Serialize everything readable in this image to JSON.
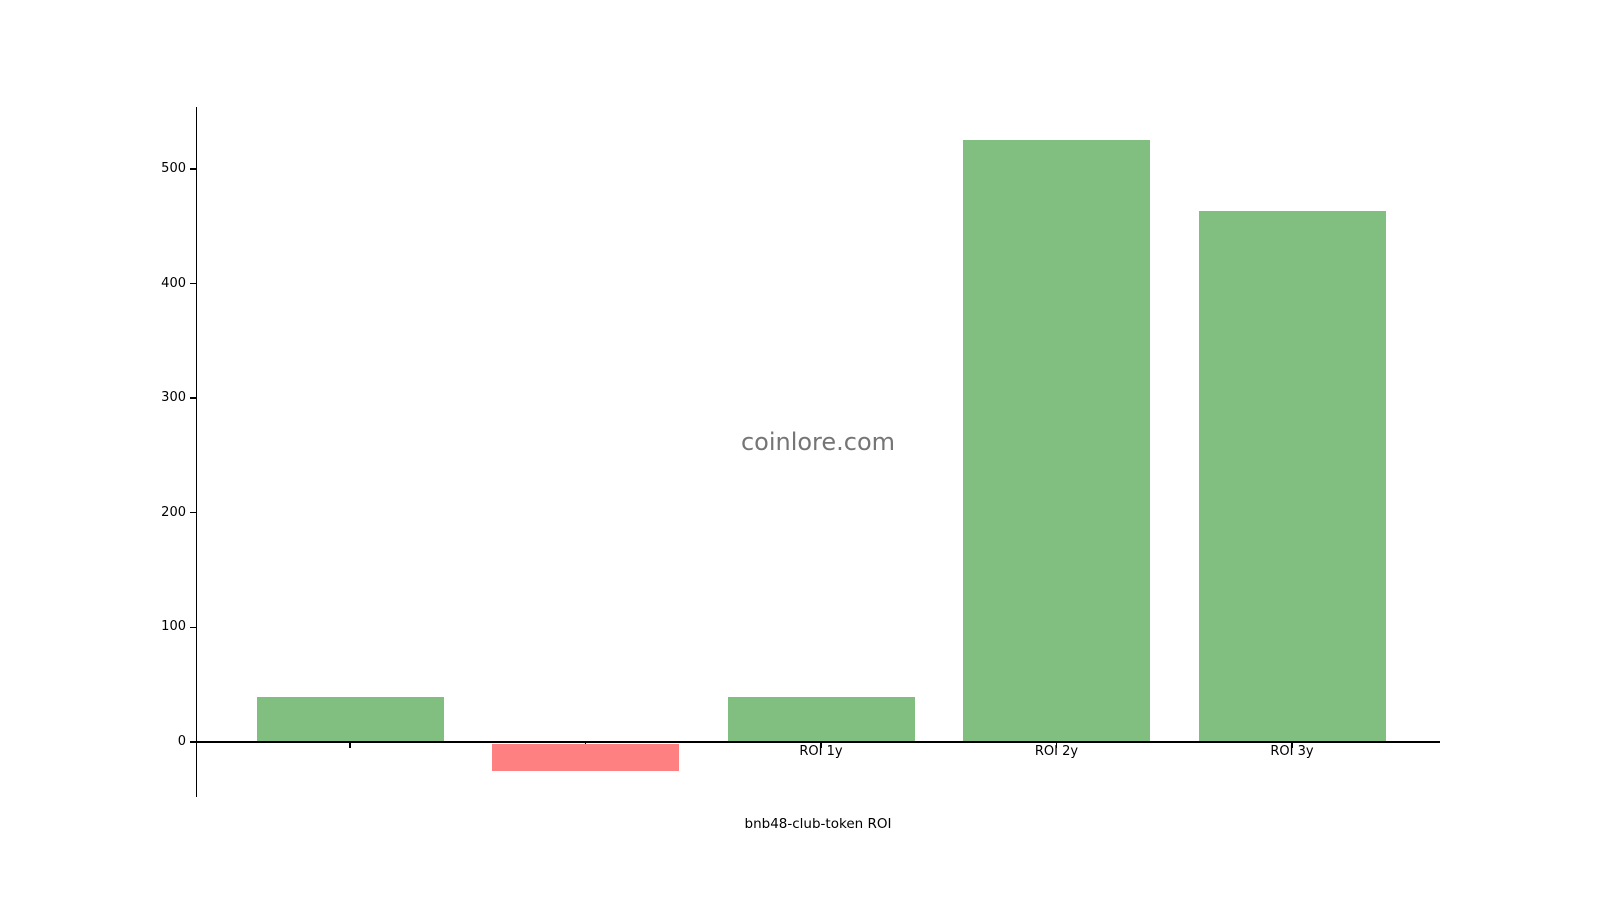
{
  "page": {
    "background": "#ffffff"
  },
  "colors": {
    "positive": "#80bf80",
    "negative": "#ff8080",
    "axis": "#000000",
    "watermark_text": "#757575",
    "label_text": "#000000"
  },
  "watermark": "coinlore.com",
  "chart_data": {
    "type": "bar",
    "title": "bnb48-club-token ROI",
    "xlabel": "",
    "ylabel": "",
    "categories": [
      "",
      "",
      "ROI 1y",
      "ROI 2y",
      "ROI 3y"
    ],
    "values": [
      39.3,
      -23.5,
      39.3,
      525.3,
      463.4
    ],
    "bar_colors": [
      "positive",
      "negative",
      "positive",
      "positive",
      "positive"
    ],
    "yticks": [
      0,
      100,
      200,
      300,
      400,
      500
    ],
    "ylim": [
      -48,
      554
    ],
    "grid": false,
    "legend": false,
    "watermark": "coinlore.com"
  }
}
